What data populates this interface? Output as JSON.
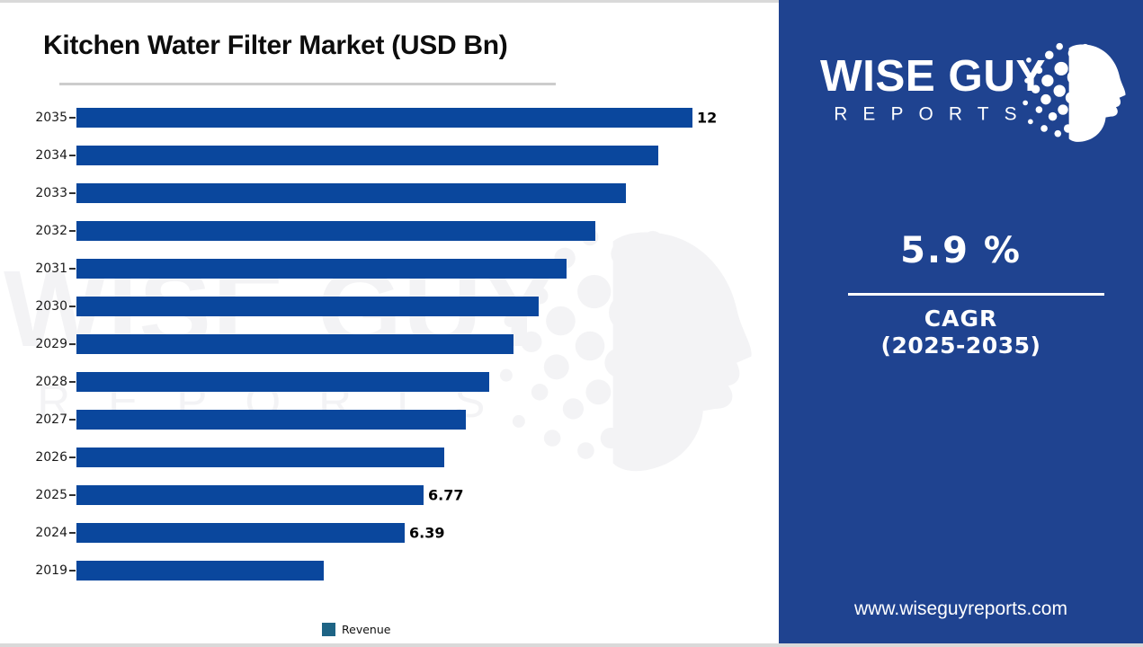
{
  "chart_data": {
    "type": "bar",
    "orientation": "horizontal",
    "title": "Kitchen Water Filter Market (USD Bn)",
    "categories": [
      "2035",
      "2034",
      "2033",
      "2032",
      "2031",
      "2030",
      "2029",
      "2028",
      "2027",
      "2026",
      "2025",
      "2024",
      "2019"
    ],
    "values": [
      12,
      11.33,
      10.7,
      10.11,
      9.54,
      9.01,
      8.51,
      8.04,
      7.59,
      7.17,
      6.77,
      6.39,
      4.82
    ],
    "bar_labels": [
      "12",
      "",
      "",
      "",
      "",
      "",
      "",
      "",
      "",
      "",
      "6.77",
      "6.39",
      ""
    ],
    "xlim": [
      0,
      12
    ],
    "xlabel": "",
    "ylabel": "",
    "grid": false,
    "bar_color": "#0a479d",
    "legend": {
      "label": "Revenue",
      "marker_color": "#1e6485",
      "position": "bottom"
    }
  },
  "side_panel": {
    "bg_color": "#1f4390",
    "logo_line1": "WISE GUY",
    "logo_line2": "REPORTS",
    "cagr_value": "5.9 %",
    "cagr_label": "CAGR",
    "cagr_period": "(2025-2035)",
    "website": "www.wiseguyreports.com"
  }
}
